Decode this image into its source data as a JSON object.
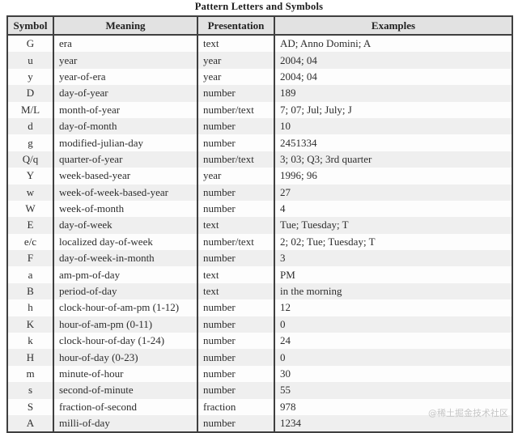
{
  "title": "Pattern Letters and Symbols",
  "table": {
    "headers": [
      "Symbol",
      "Meaning",
      "Presentation",
      "Examples"
    ],
    "rows": [
      [
        "G",
        "era",
        "text",
        "AD; Anno Domini; A"
      ],
      [
        "u",
        "year",
        "year",
        "2004; 04"
      ],
      [
        "y",
        "year-of-era",
        "year",
        "2004; 04"
      ],
      [
        "D",
        "day-of-year",
        "number",
        "189"
      ],
      [
        "M/L",
        "month-of-year",
        "number/text",
        "7; 07; Jul; July; J"
      ],
      [
        "d",
        "day-of-month",
        "number",
        "10"
      ],
      [
        "g",
        "modified-julian-day",
        "number",
        "2451334"
      ],
      [
        "Q/q",
        "quarter-of-year",
        "number/text",
        "3; 03; Q3; 3rd quarter"
      ],
      [
        "Y",
        "week-based-year",
        "year",
        "1996; 96"
      ],
      [
        "w",
        "week-of-week-based-year",
        "number",
        "27"
      ],
      [
        "W",
        "week-of-month",
        "number",
        "4"
      ],
      [
        "E",
        "day-of-week",
        "text",
        "Tue; Tuesday; T"
      ],
      [
        "e/c",
        "localized day-of-week",
        "number/text",
        "2; 02; Tue; Tuesday; T"
      ],
      [
        "F",
        "day-of-week-in-month",
        "number",
        "3"
      ],
      [
        "a",
        "am-pm-of-day",
        "text",
        "PM"
      ],
      [
        "B",
        "period-of-day",
        "text",
        "in the morning"
      ],
      [
        "h",
        "clock-hour-of-am-pm (1-12)",
        "number",
        "12"
      ],
      [
        "K",
        "hour-of-am-pm (0-11)",
        "number",
        "0"
      ],
      [
        "k",
        "clock-hour-of-day (1-24)",
        "number",
        "24"
      ],
      [
        "H",
        "hour-of-day (0-23)",
        "number",
        "0"
      ],
      [
        "m",
        "minute-of-hour",
        "number",
        "30"
      ],
      [
        "s",
        "second-of-minute",
        "number",
        "55"
      ],
      [
        "S",
        "fraction-of-second",
        "fraction",
        "978"
      ],
      [
        "A",
        "milli-of-day",
        "number",
        "1234"
      ]
    ]
  },
  "watermark": "@稀土掘金技术社区",
  "colors": {
    "header_bg": "#e2e2e2",
    "stripe_bg": "#efefef",
    "line": "#3f3f3f",
    "text": "#2d2d2d",
    "watermark": "#c5c5c5"
  }
}
